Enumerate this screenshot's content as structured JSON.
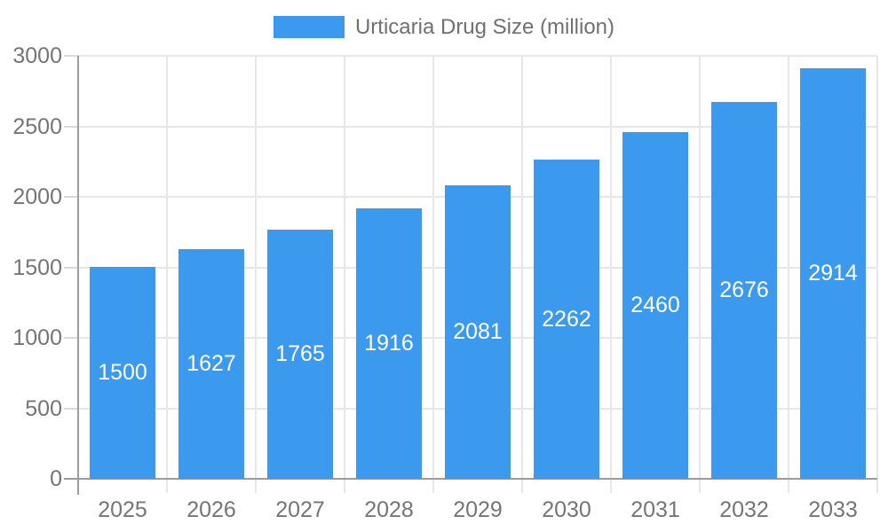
{
  "legend": {
    "label": "Urticaria Drug Size (million)"
  },
  "chart_data": {
    "type": "bar",
    "title": "Urticaria Drug Size (million)",
    "categories": [
      "2025",
      "2026",
      "2027",
      "2028",
      "2029",
      "2030",
      "2031",
      "2032",
      "2033"
    ],
    "values": [
      1500,
      1627,
      1765,
      1916,
      2081,
      2262,
      2460,
      2676,
      2914
    ],
    "value_labels": [
      "1500",
      "1627",
      "1765",
      "1916",
      "2081",
      "2262",
      "2460",
      "2676",
      "2914"
    ],
    "yticks": [
      0,
      500,
      1000,
      1500,
      2000,
      2500,
      3000
    ],
    "ytick_labels": [
      "0",
      "500",
      "1000",
      "1500",
      "2000",
      "2500",
      "3000"
    ],
    "ylim": [
      0,
      3000
    ],
    "xlabel": "",
    "ylabel": "",
    "grid": true,
    "legend_position": "top",
    "value_label_position": "inside-center"
  },
  "colors": {
    "bar": "#3b99ee",
    "axis_text": "#757575",
    "legend_text": "#707070",
    "gridline": "#e7e7e7",
    "axis_line": "#9c9c9c",
    "value_label": "#ffffff",
    "background": "#ffffff"
  }
}
